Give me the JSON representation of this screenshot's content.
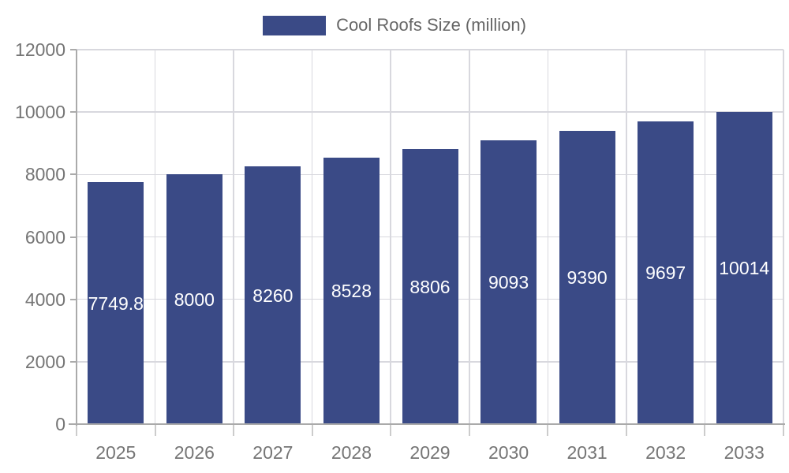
{
  "chart_data": {
    "type": "bar",
    "title": "",
    "xlabel": "",
    "ylabel": "",
    "legend": "Cool Roofs Size (million)",
    "legend_position": "top",
    "categories": [
      "2025",
      "2026",
      "2027",
      "2028",
      "2029",
      "2030",
      "2031",
      "2032",
      "2033"
    ],
    "series": [
      {
        "name": "Cool Roofs Size (million)",
        "values": [
          7749.8,
          8000,
          8260,
          8528,
          8806,
          9093,
          9390,
          9697,
          10014
        ]
      }
    ],
    "ylim": [
      0,
      12000
    ],
    "ytick_step": 2000,
    "grid": true,
    "colors": {
      "bar": "#3A4A86",
      "bar_label_text": "#ffffff",
      "axis": "#aaaaaa",
      "grid_line": "#d8d8de",
      "x_subtick": "#cccccc",
      "tick_label_text": "#757575",
      "legend_text": "#666666",
      "background": "#ffffff"
    }
  }
}
